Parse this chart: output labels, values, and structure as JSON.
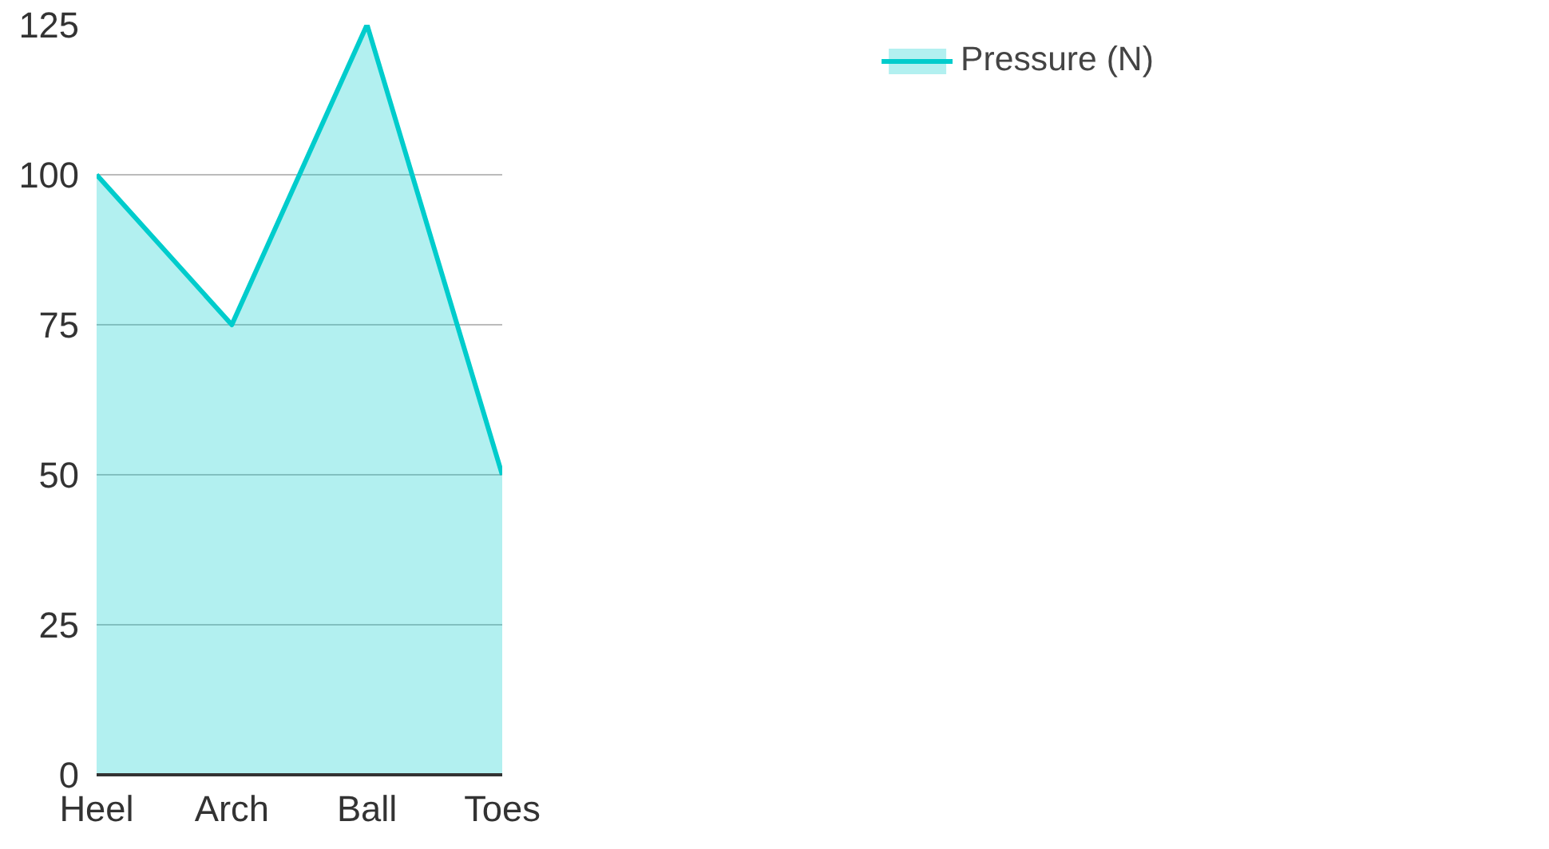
{
  "chart_data": {
    "type": "area",
    "categories": [
      "Heel",
      "Arch",
      "Ball",
      "Toes"
    ],
    "series": [
      {
        "name": "Pressure (N)",
        "color": "#00cccc",
        "values": [
          100,
          75,
          125,
          50
        ]
      }
    ],
    "ylim": [
      0,
      125
    ],
    "yticks": [
      0,
      25,
      50,
      75,
      100,
      125
    ],
    "grid": "y",
    "legend": "top right"
  }
}
